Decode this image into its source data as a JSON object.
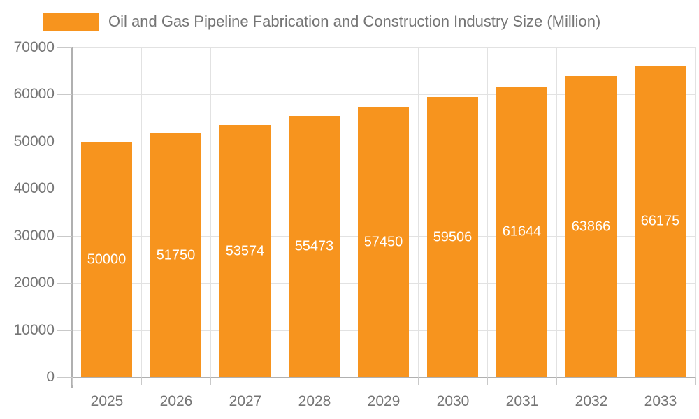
{
  "chart_data": {
    "type": "bar",
    "title": "Oil and Gas Pipeline Fabrication and Construction Industry Size (Million)",
    "categories": [
      "2025",
      "2026",
      "2027",
      "2028",
      "2029",
      "2030",
      "2031",
      "2032",
      "2033"
    ],
    "values": [
      50000,
      51750,
      53574,
      55473,
      57450,
      59506,
      61644,
      63866,
      66175
    ],
    "xlabel": "",
    "ylabel": "",
    "ylim": [
      0,
      70000
    ],
    "yticks": [
      0,
      10000,
      20000,
      30000,
      40000,
      50000,
      60000,
      70000
    ],
    "grid": true,
    "legend_position": "top-left",
    "bar_labels_inside": true
  },
  "colors": {
    "bar": "#f7941e",
    "bar_value_label": "#ffffff",
    "axis_text": "#757575",
    "legend_text": "#757575",
    "gridline": "#e2e2e2",
    "axis_line": "#b0b0b0",
    "tick_mark": "#c9c9c9",
    "background": "#ffffff"
  }
}
